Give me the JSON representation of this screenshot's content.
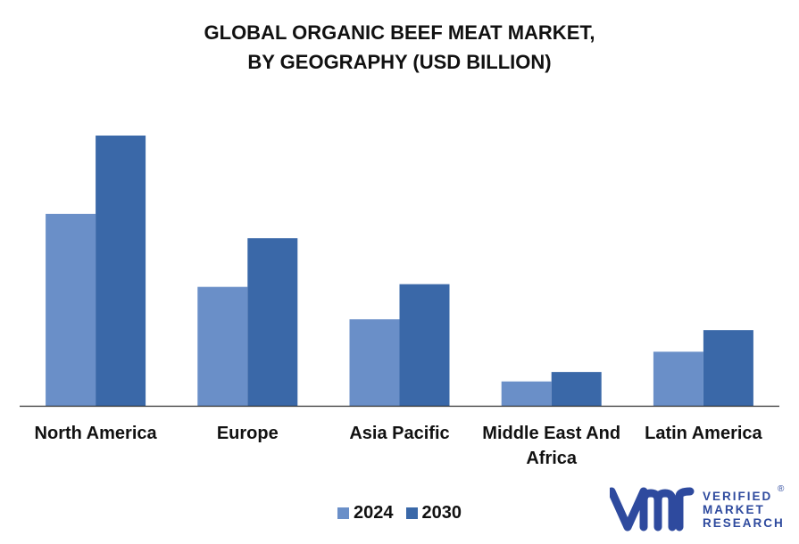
{
  "title_line1": "GLOBAL ORGANIC BEEF MEAT MARKET,",
  "title_line2": "BY GEOGRAPHY (USD BILLION)",
  "legend": [
    {
      "label": "2024",
      "color": "#6a8fc8"
    },
    {
      "label": "2030",
      "color": "#3a68a8"
    }
  ],
  "logo": {
    "line1": "VERIFIED",
    "line2": "MARKET",
    "line3": "RESEARCH",
    "reg": "®",
    "icon": "vmr-logo-icon",
    "color": "#2e4a9e"
  },
  "chart_data": {
    "type": "bar",
    "title": "GLOBAL ORGANIC BEEF MEAT MARKET, BY GEOGRAPHY (USD BILLION)",
    "categories": [
      [
        "North America"
      ],
      [
        "Europe"
      ],
      [
        "Asia Pacific"
      ],
      [
        "Middle East And",
        "Africa"
      ],
      [
        "Latin America"
      ]
    ],
    "series": [
      {
        "name": "2024",
        "color": "#6a8fc8",
        "values": [
          7.1,
          4.4,
          3.2,
          0.9,
          2.0
        ]
      },
      {
        "name": "2030",
        "color": "#3a68a8",
        "values": [
          10.0,
          6.2,
          4.5,
          1.25,
          2.8
        ]
      }
    ],
    "ylim": [
      0,
      11
    ],
    "grid": false,
    "legend_position": "bottom"
  }
}
